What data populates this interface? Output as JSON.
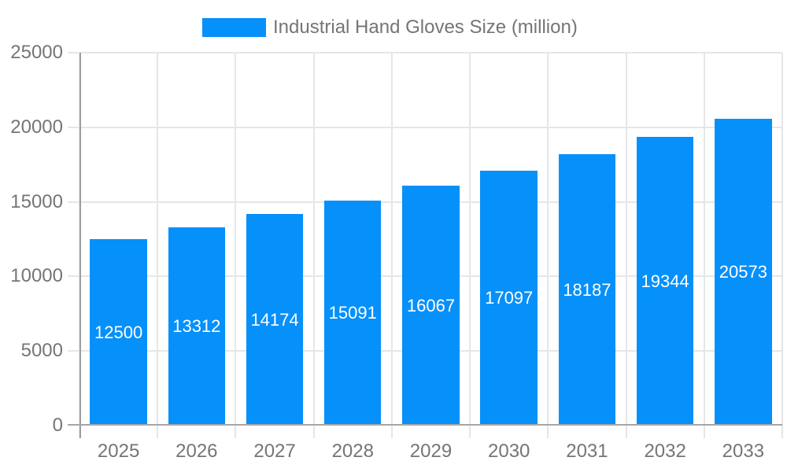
{
  "legend": {
    "label": "Industrial Hand Gloves Size (million)"
  },
  "chart_data": {
    "type": "bar",
    "categories": [
      "2025",
      "2026",
      "2027",
      "2028",
      "2029",
      "2030",
      "2031",
      "2032",
      "2033"
    ],
    "values": [
      12500,
      13312,
      14174,
      15091,
      16067,
      17097,
      18187,
      19344,
      20573
    ],
    "title": "",
    "xlabel": "",
    "ylabel": "",
    "legend": "Industrial Hand Gloves Size (million)",
    "legend_position": "top",
    "ylim": [
      0,
      25000
    ],
    "yticks": [
      0,
      5000,
      10000,
      15000,
      20000,
      25000
    ],
    "grid": true,
    "colors": {
      "bar": "#0690fa",
      "bar_value_text": "#ffffff",
      "axis_text": "#757575",
      "gridline": "#e6e6e6",
      "axis_line": "#9e9e9e",
      "baseline": "#a6a6a6"
    }
  }
}
